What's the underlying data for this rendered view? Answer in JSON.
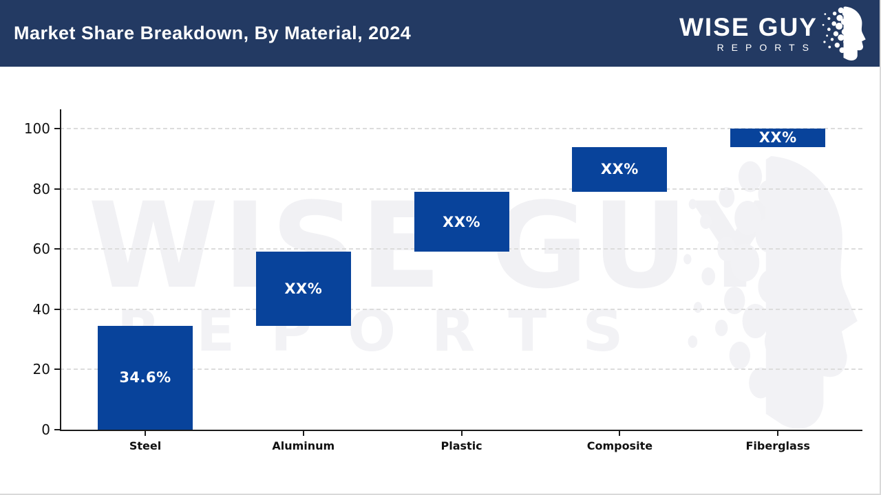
{
  "header": {
    "title": "Market Share Breakdown, By Material, 2024",
    "logo": {
      "line1": "WISE GUY",
      "line2": "REPORTS"
    }
  },
  "watermark": {
    "line1": "WISE GUY",
    "line2": "REPORTS"
  },
  "chart_data": {
    "type": "bar",
    "subtype": "waterfall-floating-bars",
    "title": "Market Share Breakdown, By Material, 2024",
    "categories": [
      "Steel",
      "Aluminum",
      "Plastic",
      "Composite",
      "Fiberglass"
    ],
    "segments": [
      {
        "category": "Steel",
        "start": 0,
        "end": 34.6,
        "label": "34.6%"
      },
      {
        "category": "Aluminum",
        "start": 34.6,
        "end": 59.2,
        "label": "XX%"
      },
      {
        "category": "Plastic",
        "start": 59.2,
        "end": 79.0,
        "label": "XX%"
      },
      {
        "category": "Composite",
        "start": 79.0,
        "end": 94.0,
        "label": "XX%"
      },
      {
        "category": "Fiberglass",
        "start": 94.0,
        "end": 100,
        "label": "XX%"
      }
    ],
    "yticks": [
      0,
      20,
      40,
      60,
      80,
      100
    ],
    "ylim": [
      0,
      105
    ],
    "xlabel": "",
    "ylabel": "",
    "bar_color": "#08439b",
    "grid": "horizontal-dashed",
    "legend": "none"
  }
}
